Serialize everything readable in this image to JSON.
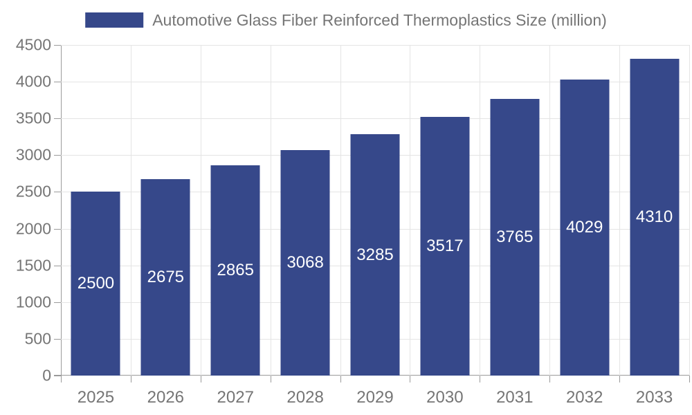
{
  "chart_data": {
    "type": "bar",
    "title": "Automotive Glass Fiber Reinforced Thermoplastics Size (million)",
    "categories": [
      "2025",
      "2026",
      "2027",
      "2028",
      "2029",
      "2030",
      "2031",
      "2032",
      "2033"
    ],
    "values": [
      2500,
      2675,
      2865,
      3068,
      3285,
      3517,
      3765,
      4029,
      4310
    ],
    "series_name": "Automotive Glass Fiber Reinforced Thermoplastics Size (million)",
    "xlabel": "",
    "ylabel": "",
    "ylim": [
      0,
      4500
    ],
    "ytick_step": 500,
    "yticks": [
      0,
      500,
      1000,
      1500,
      2000,
      2500,
      3000,
      3500,
      4000,
      4500
    ],
    "grid": true,
    "legend_position": "top-center",
    "value_label_position": "inside-center",
    "colors": {
      "bar": "#36488a",
      "bar_label": "#ffffff",
      "axis_line": "#9a9a9a",
      "tick_mark": "#9a9a9a",
      "grid_line": "#e4e4e4",
      "tick_text": "#757575",
      "legend_text": "#757575",
      "background": "#ffffff"
    }
  }
}
